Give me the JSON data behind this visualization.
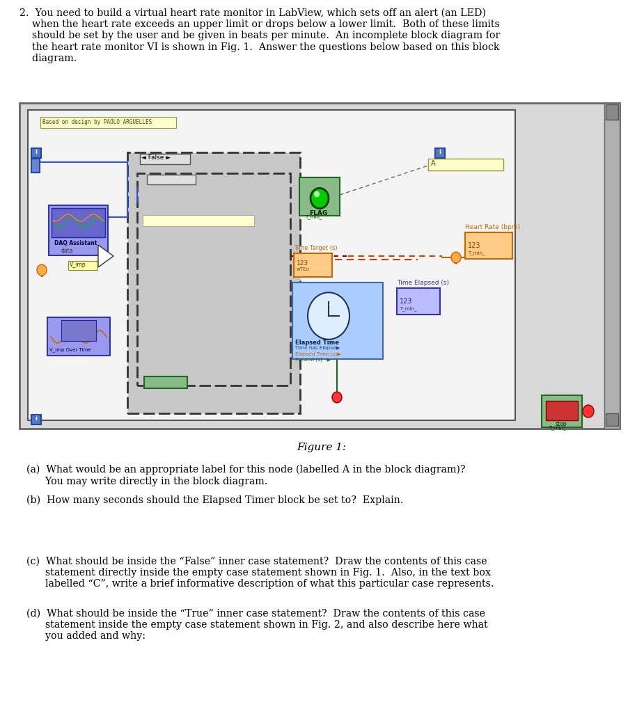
{
  "bg_color": "#ffffff",
  "text_color": "#000000",
  "fig_width": 9.25,
  "fig_height": 10.39,
  "dpi": 100,
  "intro_text": "2.  You need to build a virtual heart rate monitor in LabView, which sets off an alert (an LED)\n    when the heart rate exceeds an upper limit or drops below a lower limit.  Both of these limits\n    should be set by the user and be given in beats per minute.  An incomplete block diagram for\n    the heart rate monitor VI is shown in Fig. 1.  Answer the questions below based on this block\n    diagram.",
  "figure_caption": "Figure 1:",
  "qa_text": "(a)  What would be an appropriate label for this node (labelled A in the block diagram)?\n      You may write directly in the block diagram.",
  "qb_text": "(b)  How many seconds should the Elapsed Timer block be set to?  Explain.",
  "qc_text": "(c)  What should be inside the “False” inner case statement?  Draw the contents of this case\n      statement directly inside the empty case statement shown in Fig. 1.  Also, in the text box\n      labelled “C”, write a brief informative description of what this particular case represents.",
  "qd_text": "(d)  What should be inside the “True” inner case statement?  Draw the contents of this case\n      statement inside the empty case statement shown in Fig. 2, and also describe here what\n      you added and why:"
}
